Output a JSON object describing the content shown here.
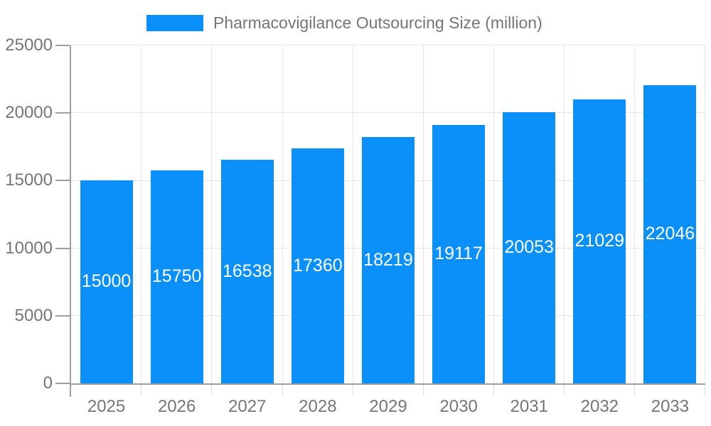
{
  "legend": {
    "label": "Pharmacovigilance Outsourcing Size (million)"
  },
  "colors": {
    "bar": "#0b90fa",
    "grid_line": "#e4e4e4",
    "axis_line": "#9e9e9e",
    "tick_label": "#757575",
    "bar_label": "#ffffff"
  },
  "chart_data": {
    "type": "bar",
    "title": "Pharmacovigilance Outsourcing Size (million)",
    "series_name": "Pharmacovigilance Outsourcing Size (million)",
    "categories": [
      "2025",
      "2026",
      "2027",
      "2028",
      "2029",
      "2030",
      "2031",
      "2032",
      "2033"
    ],
    "values": [
      15000,
      15750,
      16538,
      17360,
      18219,
      19117,
      20053,
      21029,
      22046
    ],
    "bar_labels": [
      "15000",
      "15750",
      "16538",
      "17360",
      "18219",
      "19117",
      "20053",
      "21029",
      "22046"
    ],
    "xlabel": "",
    "ylabel": "",
    "ylim": [
      0,
      25000
    ],
    "yticks": [
      0,
      5000,
      10000,
      15000,
      20000,
      25000
    ],
    "grid": true,
    "legend_position": "top",
    "value_labels": "inside-center"
  }
}
